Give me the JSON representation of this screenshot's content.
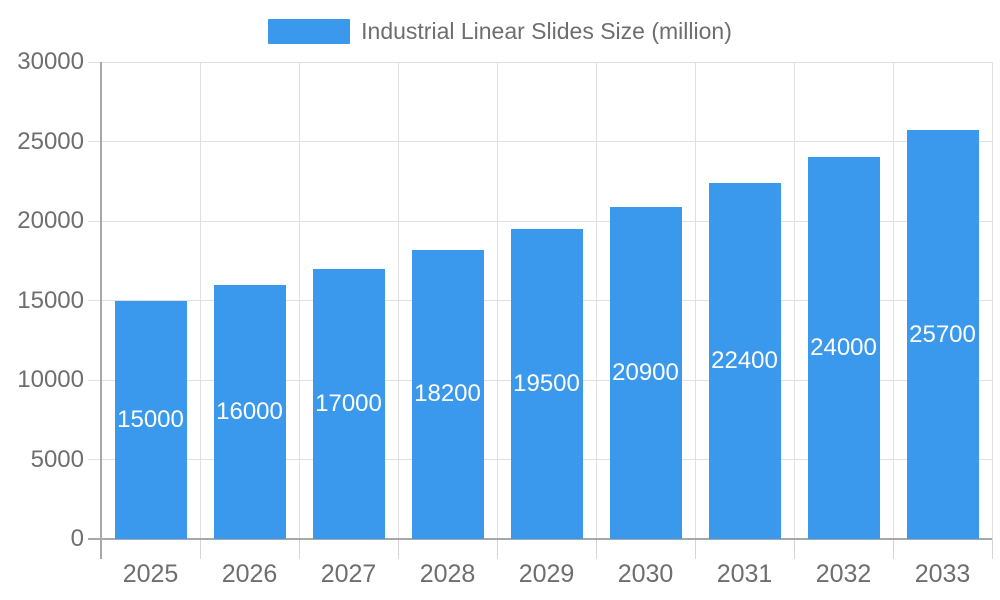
{
  "legend": {
    "position": "top",
    "items": [
      {
        "label": "Industrial Linear Slides Size (million)",
        "color": "#3a99ec"
      }
    ]
  },
  "chart_data": {
    "type": "bar",
    "title": "",
    "categories": [
      "2025",
      "2026",
      "2027",
      "2028",
      "2029",
      "2030",
      "2031",
      "2032",
      "2033"
    ],
    "series": [
      {
        "name": "Industrial Linear Slides Size (million)",
        "color": "#3a99ec",
        "values": [
          15000,
          16000,
          17000,
          18200,
          19500,
          20900,
          22400,
          24000,
          25700
        ]
      }
    ],
    "xlabel": "",
    "ylabel": "",
    "ylim": [
      0,
      30000
    ],
    "y_ticks": [
      0,
      5000,
      10000,
      15000,
      20000,
      25000,
      30000
    ],
    "grid": true,
    "legend_position": "top",
    "value_labels": {
      "show": true,
      "position": "inside-center",
      "color": "#ffffff"
    }
  },
  "colors": {
    "bar": "#3a99ec",
    "axis_line": "#a8a8a8",
    "grid_line": "#e0e0e0",
    "x_tick_line": "#d4d4d4",
    "axis_text": "#6e6e6e",
    "value_label_text": "#ffffff",
    "background": "#ffffff"
  }
}
